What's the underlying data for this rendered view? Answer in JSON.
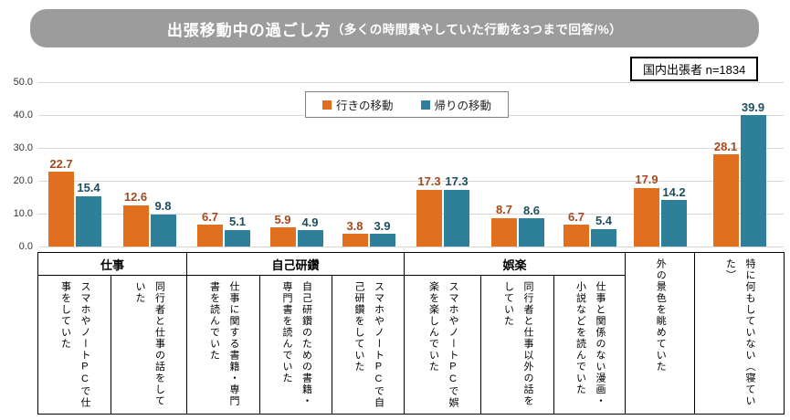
{
  "header": {
    "title_main": "出張移動中の過ごし方",
    "title_sub": "（多くの時間費やしていた行動を3つまで回答/%）",
    "sample_note": "国内出張者 n=1834"
  },
  "chart_data": {
    "type": "bar",
    "title": "出張移動中の過ごし方（多くの時間費やしていた行動を3つまで回答/%）",
    "categories": [
      "スマホやノートPCで仕事をしていた",
      "同行者と仕事の話をしていた",
      "仕事に関する書籍・専門書を読んでいた",
      "自己研鑽のための書籍・専門書を読んでいた",
      "スマホやノートPCで自己研鑽をしていた",
      "スマホやノートPCで娯楽を楽しんでいた",
      "同行者と仕事以外の話をしていた",
      "仕事と関係のない漫画・小説などを読んでいた",
      "外の景色を眺めていた",
      "特に何もしていない（寝ていた）"
    ],
    "category_groups": [
      {
        "label": "仕事",
        "span": 2
      },
      {
        "label": "自己研鑽",
        "span": 3
      },
      {
        "label": "娯楽",
        "span": 3
      },
      {
        "label": "",
        "span": 1
      },
      {
        "label": "",
        "span": 1
      }
    ],
    "series": [
      {
        "name": "行きの移動",
        "color": "#E0701E",
        "label_color": "#A5491E",
        "values": [
          22.7,
          12.6,
          6.7,
          5.9,
          3.8,
          17.3,
          8.7,
          6.7,
          17.9,
          28.1
        ]
      },
      {
        "name": "帰りの移動",
        "color": "#2E7F99",
        "label_color": "#1F4E5F",
        "values": [
          15.4,
          9.8,
          5.1,
          4.9,
          3.9,
          17.3,
          8.6,
          5.4,
          14.2,
          39.9
        ]
      }
    ],
    "ylim": [
      0,
      50
    ],
    "yticks": [
      "50.0",
      "40.0",
      "30.0",
      "20.0",
      "10.0",
      "0.0"
    ],
    "grid": true,
    "legend_position": "top-center"
  }
}
